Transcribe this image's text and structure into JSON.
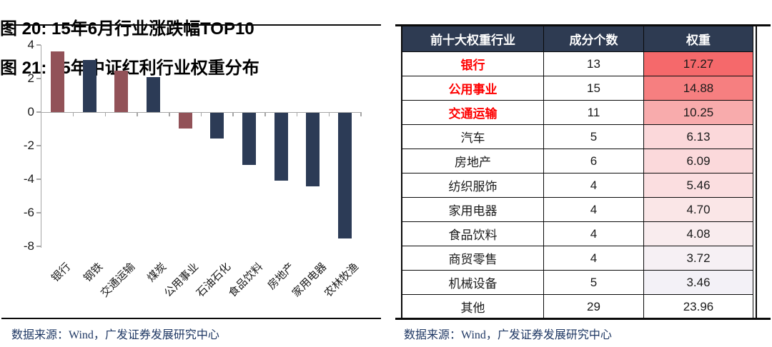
{
  "page": {
    "background": "#FFFFFF"
  },
  "left_panel": {
    "title": "图 20: 15年6月行业涨跌幅TOP10",
    "source": "数据来源：Wind，广发证券发展研究中心"
  },
  "right_panel": {
    "title": "图 21: 15年中证红利行业权重分布",
    "source": "数据来源：Wind，广发证券发展研究中心"
  },
  "colors": {
    "title_navy": "#1F3864",
    "bar_navy": "#2C3B56",
    "bar_maroon": "#925258",
    "table_header_bg": "#2E3B52",
    "highlight_red": "#FE0000",
    "axis_gray": "#A6A6A6",
    "rule_black": "#0A0A0A"
  },
  "chart_data": [
    {
      "type": "bar",
      "title": "15年6月行业涨跌幅TOP10",
      "xlabel": "",
      "ylabel": "",
      "categories": [
        "银行",
        "钢铁",
        "交通运输",
        "煤炭",
        "公用事业",
        "石油石化",
        "食品饮料",
        "房地产",
        "家用电器",
        "农林牧渔"
      ],
      "values": [
        3.6,
        3.1,
        2.45,
        2.1,
        -0.95,
        -1.55,
        -3.1,
        -4.05,
        -4.4,
        -7.5
      ],
      "bar_colors": [
        "#925258",
        "#2C3B56",
        "#925258",
        "#2C3B56",
        "#925258",
        "#2C3B56",
        "#2C3B56",
        "#2C3B56",
        "#2C3B56",
        "#2C3B56"
      ],
      "ylim": [
        -8,
        4
      ],
      "yticks": [
        4,
        2,
        0,
        -2,
        -4,
        -6,
        -8
      ],
      "grid": false,
      "legend": null
    },
    {
      "type": "table",
      "title": "15年中证红利行业权重分布",
      "columns": [
        "前十大权重行业",
        "成分个数",
        "权重"
      ],
      "rows": [
        {
          "industry": "银行",
          "count": "13",
          "weight": "17.27",
          "weight_bg": "#F5696B",
          "highlight": true
        },
        {
          "industry": "公用事业",
          "count": "15",
          "weight": "14.88",
          "weight_bg": "#F67F80",
          "highlight": true
        },
        {
          "industry": "交通运输",
          "count": "11",
          "weight": "10.25",
          "weight_bg": "#F8ABAC",
          "highlight": true
        },
        {
          "industry": "汽车",
          "count": "5",
          "weight": "6.13",
          "weight_bg": "#FBD8DA",
          "highlight": false
        },
        {
          "industry": "房地产",
          "count": "6",
          "weight": "6.09",
          "weight_bg": "#FBD9DB",
          "highlight": false
        },
        {
          "industry": "纺织服饰",
          "count": "4",
          "weight": "5.46",
          "weight_bg": "#FBDEE0",
          "highlight": false
        },
        {
          "industry": "家用电器",
          "count": "4",
          "weight": "4.70",
          "weight_bg": "#FAE6E7",
          "highlight": false
        },
        {
          "industry": "食品饮料",
          "count": "4",
          "weight": "4.08",
          "weight_bg": "#F9ECEE",
          "highlight": false
        },
        {
          "industry": "商贸零售",
          "count": "4",
          "weight": "3.72",
          "weight_bg": "#F6F0F4",
          "highlight": false
        },
        {
          "industry": "机械设备",
          "count": "5",
          "weight": "3.46",
          "weight_bg": "#F3F1F7",
          "highlight": false
        },
        {
          "industry": "其他",
          "count": "29",
          "weight": "23.96",
          "weight_bg": "#FFFFFF",
          "highlight": false
        }
      ]
    }
  ]
}
